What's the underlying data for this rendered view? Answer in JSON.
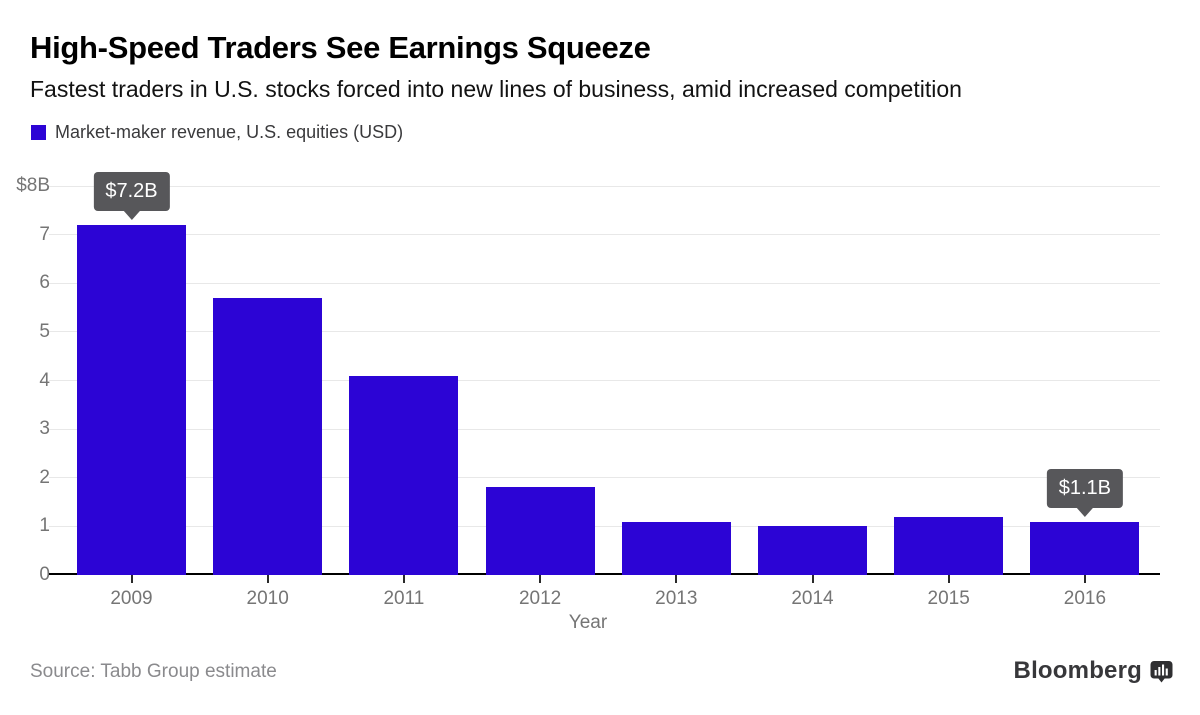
{
  "header": {
    "title": "High-Speed Traders See Earnings Squeeze",
    "subtitle": "Fastest traders in U.S. stocks forced into new lines of business, amid increased competition"
  },
  "legend": {
    "label": "Market-maker revenue, U.S. equities (USD)",
    "swatch_color": "#2c04d5"
  },
  "chart_data": {
    "type": "bar",
    "title": "Market-maker revenue, U.S. equities (USD)",
    "categories": [
      "2009",
      "2010",
      "2011",
      "2012",
      "2013",
      "2014",
      "2015",
      "2016"
    ],
    "values": [
      7.2,
      5.7,
      4.1,
      1.8,
      1.1,
      1.0,
      1.2,
      1.1
    ],
    "xlabel": "Year",
    "ylabel": "",
    "ylim": [
      0,
      8
    ],
    "yticks": [
      0,
      1,
      2,
      3,
      4,
      5,
      6,
      7,
      8
    ],
    "ytick_labels": [
      "0",
      "1",
      "2",
      "3",
      "4",
      "5",
      "6",
      "7",
      "$8B"
    ],
    "grid": true,
    "legend_position": "top-left",
    "annotations": [
      {
        "category": "2009",
        "value": 7.2,
        "label": "$7.2B"
      },
      {
        "category": "2016",
        "value": 1.1,
        "label": "$1.1B"
      }
    ],
    "colors": {
      "bar": "#2c04d5",
      "gridline": "#e8e8e8",
      "axis": "#000000",
      "tick": "#2a2a2a",
      "tick_label": "#757575",
      "callout_bg": "#57575a",
      "callout_text": "#ffffff"
    }
  },
  "footer": {
    "source": "Source: Tabb Group estimate",
    "brand": "Bloomberg"
  }
}
